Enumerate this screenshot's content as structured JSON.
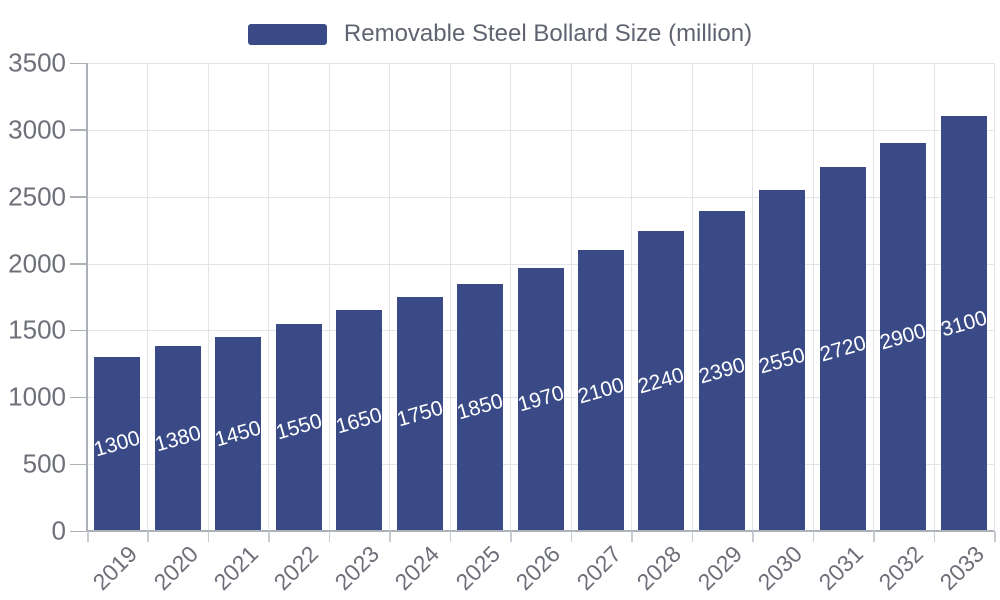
{
  "legend": {
    "label": "Removable Steel Bollard Size (million)",
    "color": "#394A87"
  },
  "chart_data": {
    "type": "bar",
    "title": "",
    "xlabel": "",
    "ylabel": "",
    "series_name": "Removable Steel Bollard Size (million)",
    "categories": [
      "2019",
      "2020",
      "2021",
      "2022",
      "2023",
      "2024",
      "2025",
      "2026",
      "2027",
      "2028",
      "2029",
      "2030",
      "2031",
      "2032",
      "2033"
    ],
    "values": [
      1300,
      1380,
      1450,
      1550,
      1650,
      1750,
      1850,
      1970,
      2100,
      2240,
      2390,
      2550,
      2720,
      2900,
      3100
    ],
    "ylim": [
      0,
      3500
    ],
    "ytick_interval": 500,
    "ytick_labels": [
      "0",
      "500",
      "1000",
      "1500",
      "2000",
      "2500",
      "3000",
      "3500"
    ],
    "grid": true,
    "legend_position": "top-center",
    "bar_color": "#394A87",
    "value_label_color": "#FFFFFF",
    "axis_label_color": "#6E7079",
    "x_label_rotation": 45,
    "value_label_rotation": -16,
    "value_label_position": "middle-of-bar"
  }
}
